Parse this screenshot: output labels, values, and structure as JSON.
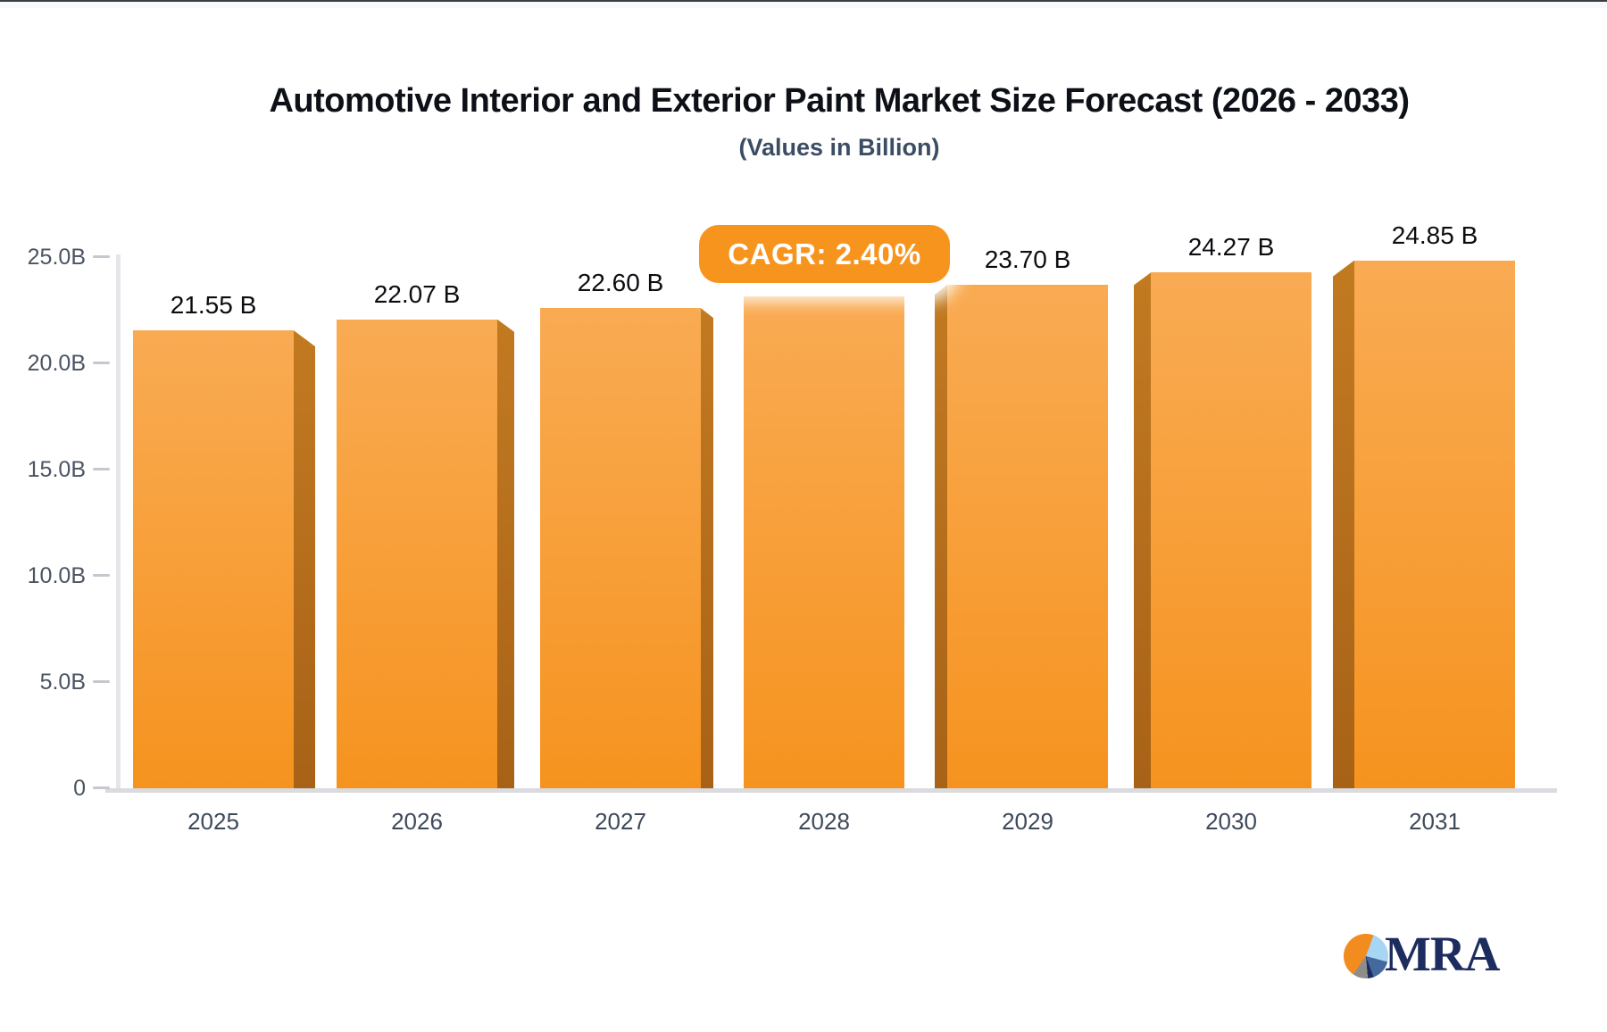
{
  "chart_data": {
    "type": "bar",
    "title": "Automotive Interior and Exterior Paint Market Size Forecast (2026 - 2033)",
    "subtitle": "(Values in Billion)",
    "categories": [
      "2025",
      "2026",
      "2027",
      "2028",
      "2029",
      "2030",
      "2031"
    ],
    "values": [
      21.55,
      22.07,
      22.6,
      23.14,
      23.7,
      24.27,
      24.85
    ],
    "value_labels": [
      "21.55 B",
      "22.07 B",
      "22.60 B",
      null,
      "23.70 B",
      "24.27 B",
      "24.85 B"
    ],
    "cagr_badge": "CAGR: 2.40%",
    "ylim": [
      0,
      25
    ],
    "y_ticks": [
      {
        "value": 0,
        "label": "0"
      },
      {
        "value": 5,
        "label": "5.0B"
      },
      {
        "value": 10,
        "label": "10.0B"
      },
      {
        "value": 15,
        "label": "15.0B"
      },
      {
        "value": 20,
        "label": "20.0B"
      },
      {
        "value": 25,
        "label": "25.0B"
      }
    ],
    "grid": false,
    "legend": "none",
    "colors": {
      "bar_face_top": "#f9ab53",
      "bar_face_bottom": "#f6931f",
      "bar_side_top": "#c27a21",
      "bar_side_bottom": "#a86217",
      "badge_background": "#f7941e",
      "axis_text": "#4b5463",
      "value_text": "#0b0d10",
      "baseline": "#d9dbdf"
    }
  },
  "logo": {
    "text": "MRA",
    "pie_colors": {
      "orange": "#f28c1e",
      "light_blue": "#a7d6f4",
      "steel_blue": "#44699d",
      "navy": "#1c2c5e",
      "gray": "#8f8d8b"
    }
  }
}
